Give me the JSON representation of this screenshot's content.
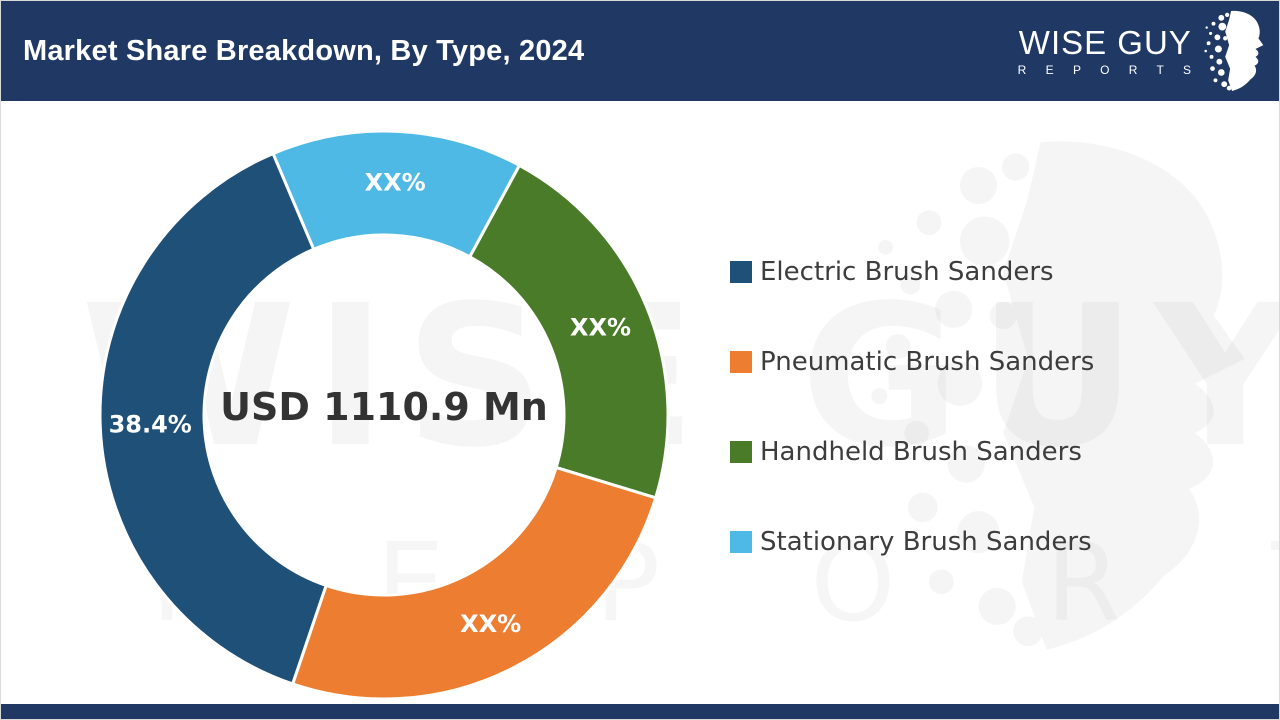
{
  "header": {
    "title": "Market Share Breakdown, By Type, 2024",
    "bg_color": "#1F3864",
    "logo": {
      "line1": "WISE GUY",
      "line2": "R E P O R T S"
    }
  },
  "chart_data": {
    "type": "pie",
    "donut": true,
    "title": "Market Share Breakdown, By Type, 2024",
    "center_label": "USD 1110.9 Mn",
    "legend_position": "right",
    "start_angle_deg": 337,
    "segments": [
      {
        "label": "Electric Brush Sanders",
        "color": "#1F5078",
        "display_value": "38.4%",
        "value_pct": 38.4
      },
      {
        "label": "Pneumatic Brush Sanders",
        "color": "#ED7D31",
        "display_value": "XX%",
        "value_pct": 25.5
      },
      {
        "label": "Handheld Brush Sanders",
        "color": "#4A7B28",
        "display_value": "XX%",
        "value_pct": 21.8
      },
      {
        "label": "Stationary Brush Sanders",
        "color": "#4FB9E6",
        "display_value": "XX%",
        "value_pct": 14.3
      }
    ],
    "note": "Values shown as XX% are masked in the source image; masked value_pct estimated from arc angles"
  },
  "watermark": {
    "line1": "WISE GUY",
    "line2": "R E P O R T S"
  },
  "footer": {
    "bg_color": "#1F3864"
  }
}
